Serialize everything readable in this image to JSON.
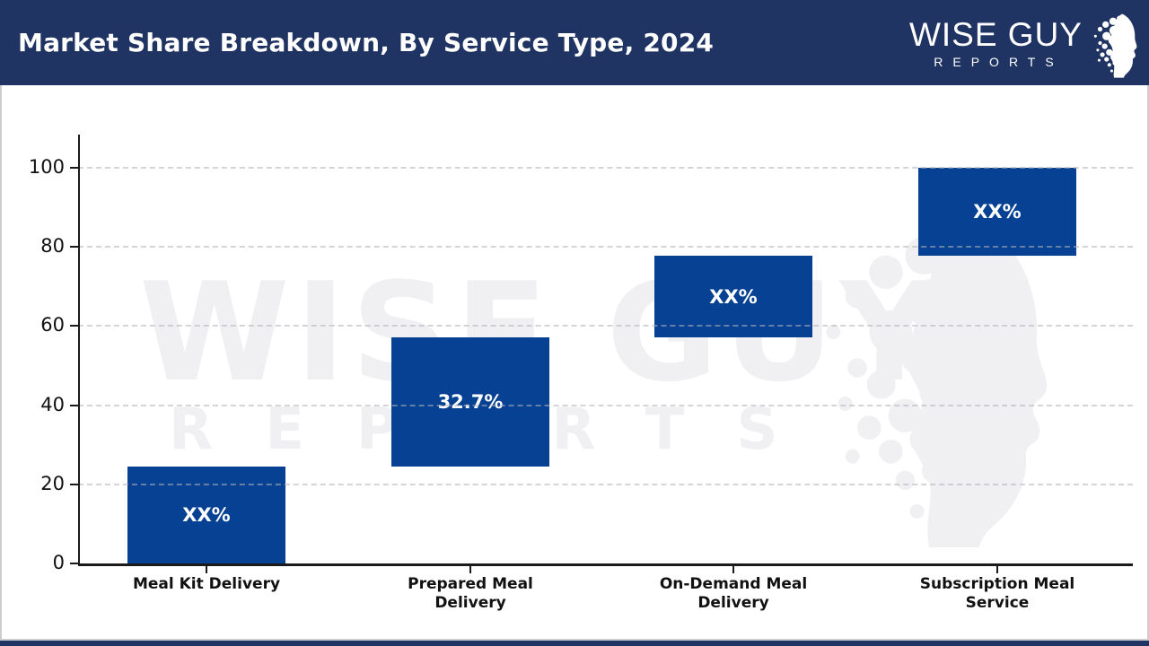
{
  "header": {
    "title": "Market Share Breakdown, By Service Type, 2024",
    "bg_color": "#203464",
    "logo": {
      "line1": "WISE GUY",
      "line2": "REPORTS"
    }
  },
  "watermark": {
    "line1": "WISE GUY",
    "line2": "REPORTS"
  },
  "chart_data": {
    "type": "bar",
    "subtype": "waterfall-stacked-percent",
    "title": "Market Share Breakdown, By Service Type, 2024",
    "xlabel": "",
    "ylabel": "",
    "categories": [
      "Meal Kit Delivery",
      "Prepared Meal Delivery",
      "On-Demand Meal Delivery",
      "Subscription Meal Service"
    ],
    "category_lines": [
      [
        "Meal Kit Delivery"
      ],
      [
        "Prepared Meal",
        "Delivery"
      ],
      [
        "On-Demand Meal",
        "Delivery"
      ],
      [
        "Subscription Meal",
        "Service"
      ]
    ],
    "segments": [
      {
        "category": "Meal Kit Delivery",
        "start": 0,
        "end": 24.4,
        "height_est": 24.4,
        "value_label": "XX%"
      },
      {
        "category": "Prepared Meal Delivery",
        "start": 24.4,
        "end": 57.1,
        "height_est": 32.7,
        "value_label": "32.7%"
      },
      {
        "category": "On-Demand Meal Delivery",
        "start": 57.2,
        "end": 77.7,
        "height_est": 20.5,
        "value_label": "XX%"
      },
      {
        "category": "Subscription Meal Service",
        "start": 77.8,
        "end": 100,
        "height_est": 22.2,
        "value_label": "XX%"
      }
    ],
    "yticks": [
      0,
      20,
      40,
      60,
      80,
      100
    ],
    "ylim": [
      0,
      108
    ],
    "grid": "horizontal-dashed",
    "legend": "none",
    "bar_color": "#074194",
    "value_label_color": "#ffffff"
  }
}
